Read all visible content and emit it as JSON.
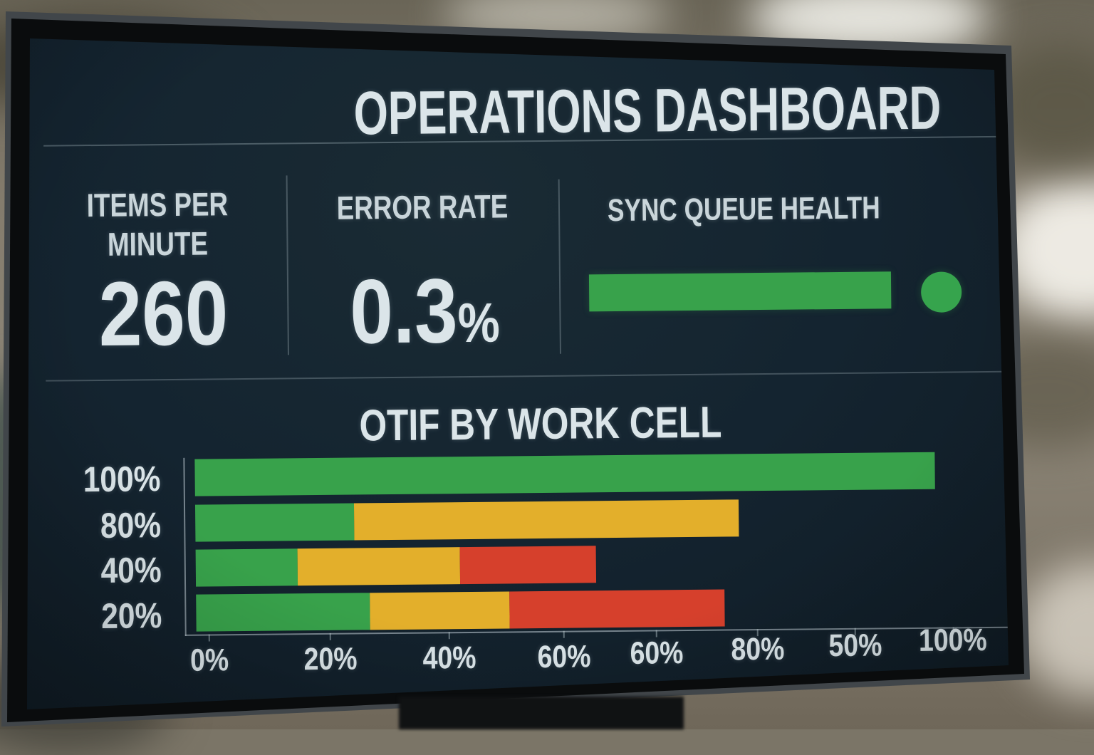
{
  "colors": {
    "screen_background": "#13212A",
    "green": "#38A24B",
    "amber": "#E3AF2B",
    "red": "#D6402C",
    "text": "#DBE5E9"
  },
  "header": {
    "title": "OPERATIONS DASHBOARD"
  },
  "kpis": [
    {
      "label_line1": "ITEMS PER",
      "label_line2": "MINUTE",
      "value": "260"
    },
    {
      "label": "ERROR RATE",
      "value": "0.3",
      "unit": "%"
    },
    {
      "label": "SYNC QUEUE HEALTH",
      "bar_color": "#38A24B",
      "indicator_color": "#36A44D"
    }
  ],
  "chart_data": {
    "type": "bar",
    "orientation": "horizontal",
    "stacked": true,
    "title": "OTIF BY WORK CELL",
    "categories": [
      "100%",
      "80%",
      "40%",
      "20%"
    ],
    "series": [
      {
        "name": "green",
        "color": "#38A24B",
        "values": [
          98,
          21,
          13.5,
          23
        ]
      },
      {
        "name": "amber",
        "color": "#E3AF2B",
        "values": [
          0,
          51,
          21.5,
          18.5
        ]
      },
      {
        "name": "red",
        "color": "#D6402C",
        "values": [
          0,
          0,
          18,
          28.5
        ]
      }
    ],
    "x_ticks": [
      "0%",
      "20%",
      "40%",
      "60%",
      "60%",
      "80%",
      "50%",
      "100%"
    ],
    "xlim": [
      0,
      100
    ],
    "legend": "none",
    "grid": "off"
  }
}
